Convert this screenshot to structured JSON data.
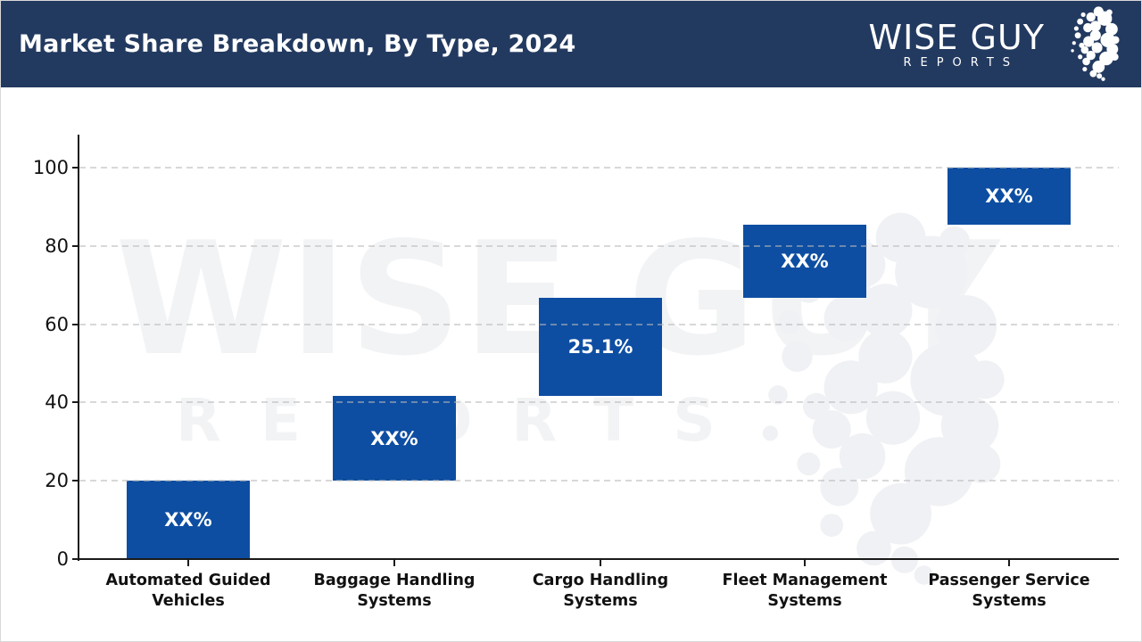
{
  "header": {
    "title": "Market Share Breakdown, By Type, 2024",
    "background_color": "#233a60",
    "logo": {
      "line1": "WISE GUY",
      "line2": "REPORTS"
    }
  },
  "watermark": {
    "line1": "WISE GUY",
    "line2": "REPORTS"
  },
  "chart_data": {
    "type": "bar",
    "subtype": "waterfall",
    "title": "Market Share Breakdown, By Type, 2024",
    "categories": [
      "Automated Guided Vehicles",
      "Baggage Handling Systems",
      "Cargo Handling Systems",
      "Fleet Management Systems",
      "Passenger Service Systems"
    ],
    "series": [
      {
        "name": "Market share (%)",
        "segments": [
          {
            "start": 0,
            "end": 20,
            "value_label": "XX%"
          },
          {
            "start": 20,
            "end": 41.6,
            "value_label": "XX%"
          },
          {
            "start": 41.6,
            "end": 66.7,
            "value_label": "25.1%"
          },
          {
            "start": 66.7,
            "end": 85.5,
            "value_label": "XX%"
          },
          {
            "start": 85.5,
            "end": 100,
            "value_label": "XX%"
          }
        ]
      }
    ],
    "yticks": [
      0,
      20,
      40,
      60,
      80,
      100
    ],
    "ylim": [
      0,
      107
    ],
    "xlabel": "",
    "ylabel": "",
    "grid": "dashed horizontal",
    "legend": "none",
    "bar_color": "#0d4ea2",
    "bar_label_color": "#ffffff"
  }
}
